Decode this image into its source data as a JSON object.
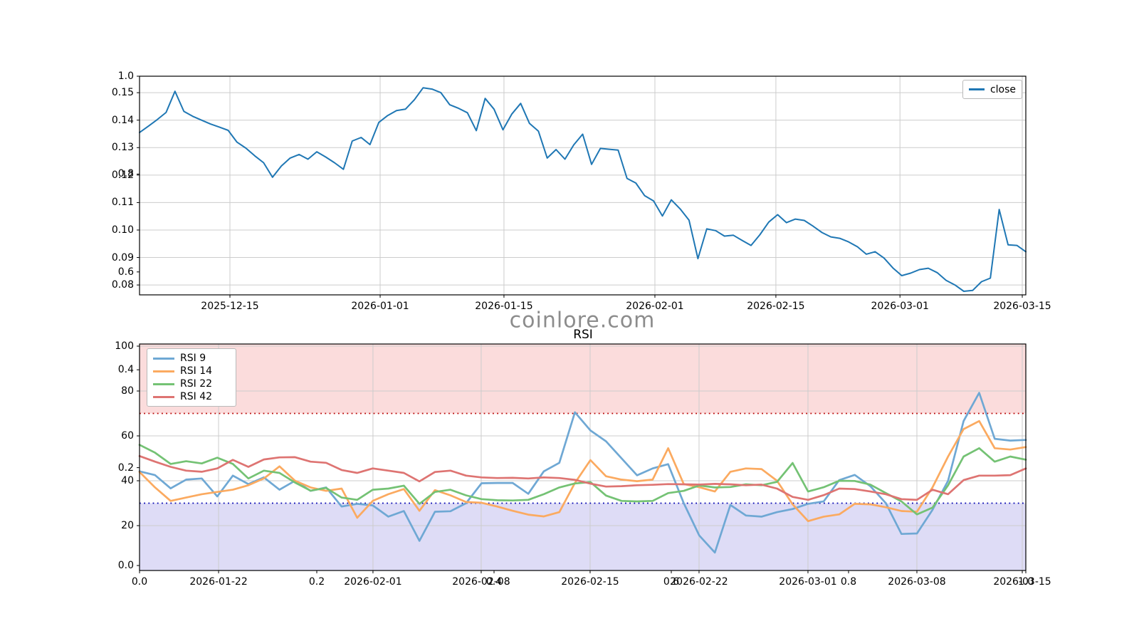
{
  "watermark": "coinlore.com",
  "figure_axis": {
    "y_tick_labels": [
      "1.0",
      "0.8",
      "0.6",
      "0.4",
      "0.2",
      "0.0"
    ],
    "x_tick_labels": [
      "0.0",
      "0.2",
      "0.4",
      "0.6",
      "0.8",
      "1.0"
    ]
  },
  "colors": {
    "close_line": "#1f77b4",
    "rsi9": "#6fa8d4",
    "rsi14": "#fbaa60",
    "rsi22": "#74c274",
    "rsi42": "#de7472",
    "overbought_band": "#fbdcdc",
    "oversold_band": "#dedcf6",
    "overbought_line": "#b80000",
    "oversold_line": "#0000b0",
    "grid": "#cccccc",
    "spine": "#000000"
  },
  "chart_data": [
    {
      "type": "line",
      "title": "",
      "legend_position": "upper right",
      "ylim": [
        0.0764,
        0.156
      ],
      "grid": true,
      "y_ticks": [
        {
          "label": "0.15",
          "v": 0.15
        },
        {
          "label": "0.14",
          "v": 0.14
        },
        {
          "label": "0.13",
          "v": 0.13
        },
        {
          "label": "0.12",
          "v": 0.12
        },
        {
          "label": "0.11",
          "v": 0.11
        },
        {
          "label": "0.10",
          "v": 0.1
        },
        {
          "label": "0.09",
          "v": 0.09
        },
        {
          "label": "0.08",
          "v": 0.08
        }
      ],
      "x_ticks": [
        {
          "label": "2025-12-15",
          "f": 0.102
        },
        {
          "label": "2026-01-01",
          "f": 0.2715
        },
        {
          "label": "2026-01-15",
          "f": 0.4112
        },
        {
          "label": "2026-02-01",
          "f": 0.5815
        },
        {
          "label": "2026-02-15",
          "f": 0.718
        },
        {
          "label": "2026-03-01",
          "f": 0.858
        },
        {
          "label": "2026-03-15",
          "f": 0.996
        }
      ],
      "series": [
        {
          "name": "close",
          "color": "#1f77b4",
          "width": 2,
          "values": [
            0.1355,
            0.1378,
            0.1402,
            0.1428,
            0.1505,
            0.1432,
            0.1414,
            0.14,
            0.1386,
            0.1375,
            0.1363,
            0.132,
            0.1298,
            0.127,
            0.1245,
            0.1192,
            0.1233,
            0.1262,
            0.1275,
            0.1258,
            0.1285,
            0.1266,
            0.1245,
            0.1221,
            0.1324,
            0.1337,
            0.1311,
            0.1392,
            0.1417,
            0.1435,
            0.144,
            0.1474,
            0.1518,
            0.1513,
            0.15,
            0.1456,
            0.1443,
            0.1427,
            0.1362,
            0.1479,
            0.144,
            0.1365,
            0.1422,
            0.1461,
            0.1388,
            0.136,
            0.1262,
            0.1293,
            0.1258,
            0.131,
            0.1349,
            0.1239,
            0.1297,
            0.1294,
            0.1291,
            0.1188,
            0.1171,
            0.1125,
            0.1106,
            0.1051,
            0.111,
            0.1077,
            0.1036,
            0.0896,
            0.1004,
            0.0998,
            0.0978,
            0.0981,
            0.0962,
            0.0944,
            0.0983,
            0.1029,
            0.1056,
            0.1027,
            0.104,
            0.1035,
            0.1014,
            0.0991,
            0.0975,
            0.097,
            0.0957,
            0.0939,
            0.0912,
            0.0921,
            0.0898,
            0.0862,
            0.0834,
            0.0843,
            0.0856,
            0.0861,
            0.0845,
            0.0817,
            0.08,
            0.0777,
            0.078,
            0.0812,
            0.0825,
            0.1075,
            0.0946,
            0.0944,
            0.0921
          ]
        }
      ]
    },
    {
      "type": "line",
      "title": "RSI",
      "legend_position": "upper left",
      "ylim": [
        0,
        100.95
      ],
      "grid": true,
      "bands": [
        {
          "from": 70,
          "to": 100.95,
          "color": "#fbdcdc",
          "name": "overbought-zone"
        },
        {
          "from": 0,
          "to": 30,
          "color": "#dedcf6",
          "name": "oversold-zone"
        }
      ],
      "hlines": [
        {
          "v": 70,
          "color": "#b80000",
          "style": "dotted",
          "name": "overbought-threshold"
        },
        {
          "v": 30,
          "color": "#0000b0",
          "style": "dotted",
          "name": "oversold-threshold"
        }
      ],
      "y_ticks": [
        {
          "label": "100",
          "v": 100
        },
        {
          "label": "80",
          "v": 80
        },
        {
          "label": "60",
          "v": 60
        },
        {
          "label": "40",
          "v": 40
        },
        {
          "label": "20",
          "v": 20
        }
      ],
      "x_ticks": [
        {
          "label": "2026-01-22",
          "f": 0.0892
        },
        {
          "label": "2026-02-01",
          "f": 0.2634
        },
        {
          "label": "2026-02-08",
          "f": 0.3855
        },
        {
          "label": "2026-02-15",
          "f": 0.5084
        },
        {
          "label": "2026-02-22",
          "f": 0.6313
        },
        {
          "label": "2026-03-01",
          "f": 0.7542
        },
        {
          "label": "2026-03-08",
          "f": 0.8771
        },
        {
          "label": "2026-03-15",
          "f": 0.996
        }
      ],
      "series": [
        {
          "name": "RSI 9",
          "color": "#6fa8d4",
          "width": 2.7,
          "values": [
            44.2,
            42.5,
            36.6,
            40.5,
            41.0,
            33.0,
            42.3,
            38.5,
            41.5,
            36.0,
            40.0,
            35.5,
            37.0,
            28.5,
            29.7,
            29.0,
            24.0,
            26.5,
            13.2,
            26.2,
            26.4,
            30.0,
            38.9,
            39.0,
            39.0,
            34.2,
            44.2,
            48.0,
            70.5,
            62.4,
            57.6,
            50.0,
            42.4,
            45.5,
            47.4,
            30.0,
            15.6,
            8.0,
            29.2,
            24.5,
            24.0,
            26.0,
            27.4,
            29.7,
            30.8,
            40.3,
            42.6,
            37.6,
            30.0,
            16.3,
            16.5,
            27.0,
            40.0,
            66.6,
            79.2,
            58.7,
            57.9,
            58.2
          ]
        },
        {
          "name": "RSI 14",
          "color": "#fbaa60",
          "width": 2.7,
          "values": [
            43.9,
            37.0,
            31.0,
            32.5,
            34.0,
            35.0,
            36.0,
            38.0,
            41.0,
            46.4,
            40.0,
            37.0,
            35.5,
            36.5,
            23.5,
            31.0,
            34.0,
            36.3,
            26.6,
            35.8,
            33.5,
            30.5,
            30.2,
            28.5,
            26.6,
            24.9,
            24.1,
            26.0,
            39.0,
            49.2,
            42.0,
            40.5,
            39.8,
            40.5,
            54.5,
            38.5,
            37.1,
            35.2,
            44.0,
            45.5,
            45.2,
            40.0,
            29.5,
            22.0,
            24.0,
            25.0,
            29.7,
            29.5,
            28.2,
            26.5,
            26.2,
            37.0,
            50.8,
            63.0,
            66.6,
            54.5,
            53.9,
            55.0
          ]
        },
        {
          "name": "RSI 22",
          "color": "#74c274",
          "width": 2.7,
          "values": [
            56.0,
            52.5,
            47.5,
            48.7,
            47.7,
            50.3,
            47.5,
            41.0,
            44.5,
            43.5,
            39.2,
            35.6,
            36.8,
            32.5,
            31.5,
            36.0,
            36.5,
            37.8,
            29.7,
            35.0,
            36.0,
            33.5,
            31.8,
            31.3,
            31.2,
            31.5,
            34.0,
            37.0,
            38.8,
            39.4,
            33.4,
            31.0,
            30.8,
            31.0,
            34.5,
            35.5,
            37.9,
            37.0,
            37.2,
            38.4,
            38.0,
            39.5,
            47.9,
            35.2,
            37.1,
            40.0,
            39.9,
            38.3,
            34.5,
            30.8,
            25.0,
            28.0,
            38.0,
            50.8,
            54.5,
            48.5,
            50.8,
            49.4
          ]
        },
        {
          "name": "RSI 42",
          "color": "#de7472",
          "width": 2.7,
          "values": [
            51.0,
            48.5,
            46.2,
            44.5,
            44.0,
            45.5,
            49.3,
            46.2,
            49.5,
            50.4,
            50.5,
            48.5,
            48.0,
            44.8,
            43.5,
            45.5,
            44.5,
            43.5,
            39.7,
            43.9,
            44.5,
            42.3,
            41.5,
            41.2,
            41.3,
            41.0,
            41.5,
            41.2,
            40.4,
            38.7,
            37.4,
            37.6,
            38.0,
            38.2,
            38.5,
            38.4,
            38.3,
            38.6,
            38.4,
            38.0,
            38.3,
            36.5,
            32.8,
            31.5,
            33.6,
            36.5,
            36.3,
            35.2,
            34.0,
            31.8,
            31.5,
            36.0,
            34.0,
            40.3,
            42.3,
            42.3,
            42.5,
            45.5
          ]
        }
      ]
    }
  ]
}
